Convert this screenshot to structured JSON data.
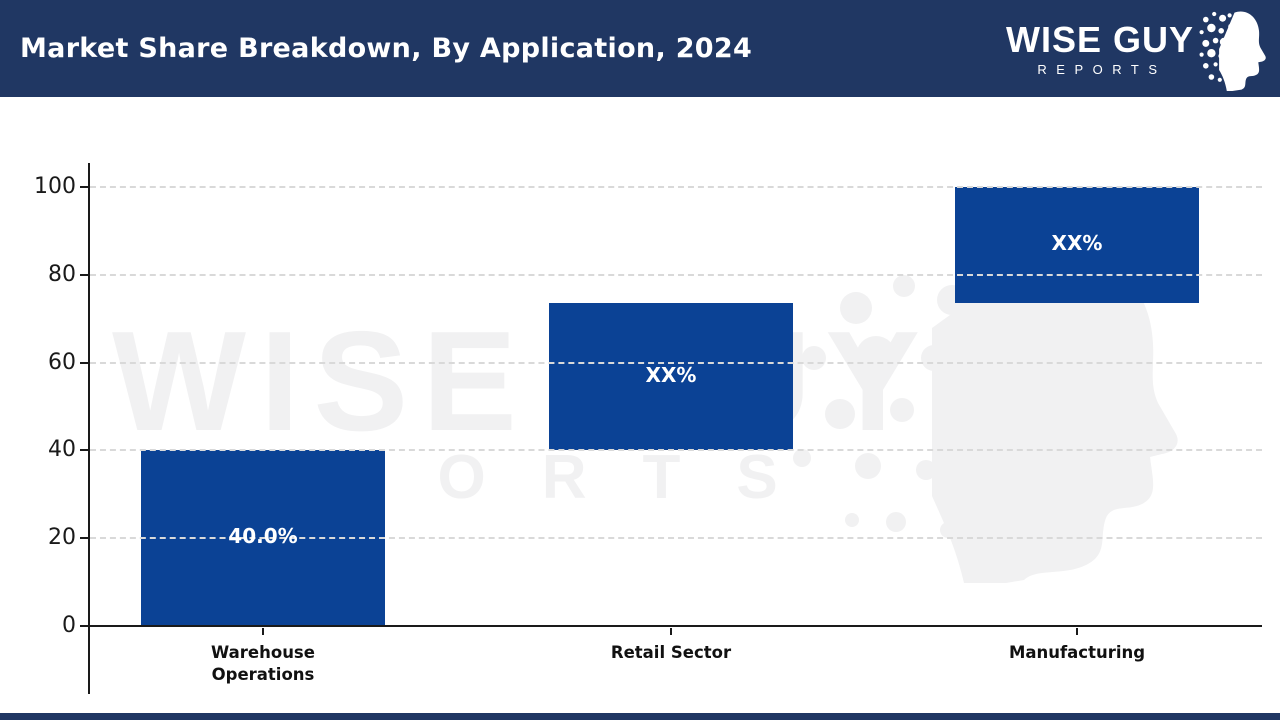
{
  "header": {
    "title": "Market Share Breakdown, By Application, 2024",
    "logo": {
      "line1": "WISE GUY",
      "line2": "REPORTS"
    }
  },
  "watermark": {
    "line1": "WISE GUY",
    "line2": "REPORTS"
  },
  "colors": {
    "header_bg": "#203763",
    "bar": "#0b4295",
    "grid": "#d9d9d9",
    "axis": "#1a1a1a",
    "bar_label": "#ffffff",
    "watermark": "#f1f1f2"
  },
  "chart_data": {
    "type": "bar",
    "subtype": "waterfall",
    "title": "Market Share Breakdown, By Application, 2024",
    "categories": [
      "Warehouse\nOperations",
      "Retail Sector",
      "Manufacturing"
    ],
    "bars": [
      {
        "category": "Warehouse Operations",
        "start": 0,
        "end": 40,
        "label": "40.0%"
      },
      {
        "category": "Retail Sector",
        "start": 40,
        "end": 73.5,
        "label": "XX%"
      },
      {
        "category": "Manufacturing",
        "start": 73.5,
        "end": 100,
        "label": "XX%"
      }
    ],
    "ylim": [
      0,
      105.5
    ],
    "yticks": [
      0,
      20,
      40,
      60,
      80,
      100
    ],
    "xlabel": "",
    "ylabel": "",
    "grid": "horizontal-dashed",
    "legend": null
  }
}
